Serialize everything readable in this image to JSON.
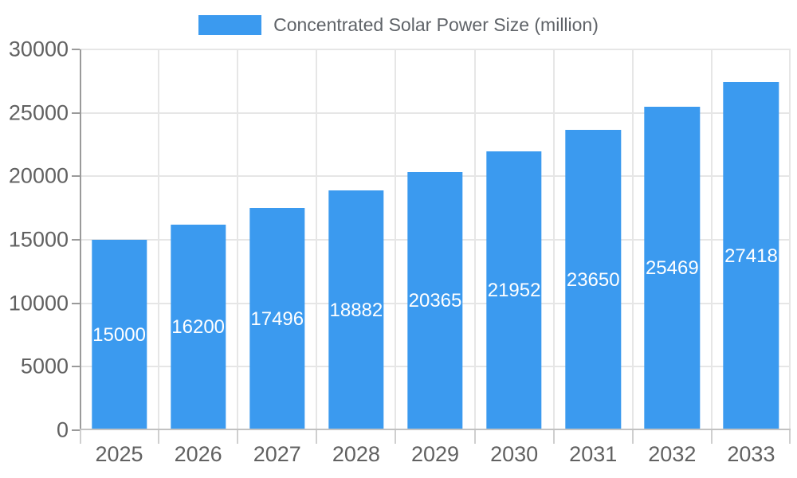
{
  "chart_data": {
    "type": "bar",
    "title": "",
    "legend": {
      "label": "Concentrated Solar Power Size (million)",
      "position": "top-center"
    },
    "categories": [
      "2025",
      "2026",
      "2027",
      "2028",
      "2029",
      "2030",
      "2031",
      "2032",
      "2033"
    ],
    "series": [
      {
        "name": "Concentrated Solar Power Size (million)",
        "values": [
          15000,
          16200,
          17496,
          18882,
          20365,
          21952,
          23650,
          25469,
          27418
        ]
      }
    ],
    "value_labels": {
      "visible": true,
      "position": "center-of-bar",
      "color": "#FFFFFF"
    },
    "xlabel": "",
    "ylabel": "",
    "ylim": [
      0,
      30000
    ],
    "y_ticks": [
      0,
      5000,
      10000,
      15000,
      20000,
      25000,
      30000
    ],
    "grid": true,
    "bar_width_fraction": 0.7,
    "colors": {
      "bar": "#3B9AEF",
      "gridline": "#E6E6E6",
      "y_axis_line": "#9A9A9A",
      "x_axis_line": "#C2C2C2",
      "axis_tick": "#CFCFCF",
      "y_tick": "#9A9A9A",
      "tick_text": "#616161",
      "legend_text": "#5F6368",
      "background": "#FFFFFF"
    }
  }
}
